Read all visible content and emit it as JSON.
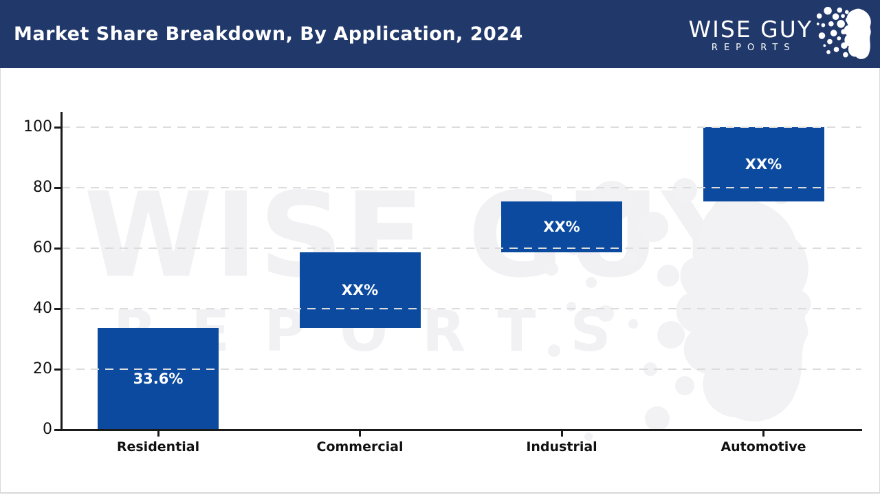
{
  "header": {
    "title": "Market Share Breakdown, By Application, 2024",
    "brand_line1": "WISE GUY",
    "brand_line2": "REPORTS"
  },
  "watermark": {
    "line1": "WISE GUY",
    "line2": "REPORTS"
  },
  "chart_data": {
    "type": "bar",
    "variant": "waterfall",
    "title": "Market Share Breakdown, By Application, 2024",
    "categories": [
      "Residential",
      "Commercial",
      "Industrial",
      "Automotive"
    ],
    "series": [
      {
        "name": "Market Share",
        "segments": [
          {
            "category": "Residential",
            "start": 0,
            "end": 33.6,
            "value_label": "33.6%"
          },
          {
            "category": "Commercial",
            "start": 33.6,
            "end": 58.6,
            "value_label": "XX%"
          },
          {
            "category": "Industrial",
            "start": 58.6,
            "end": 75.5,
            "value_label": "XX%"
          },
          {
            "category": "Automotive",
            "start": 75.5,
            "end": 100,
            "value_label": "XX%"
          }
        ]
      }
    ],
    "xlabel": "",
    "ylabel": "",
    "yticks": [
      0,
      20,
      40,
      60,
      80,
      100
    ],
    "ylim": [
      0,
      105
    ],
    "grid": "horizontal-dashed",
    "legend": "none",
    "colors": {
      "bar": "#0b4a9f",
      "bar_label": "#ffffff",
      "axis": "#1a1a1a",
      "grid": "#dcdcdc",
      "header_bg": "#21386a",
      "watermark": "#f1f1f3"
    }
  }
}
